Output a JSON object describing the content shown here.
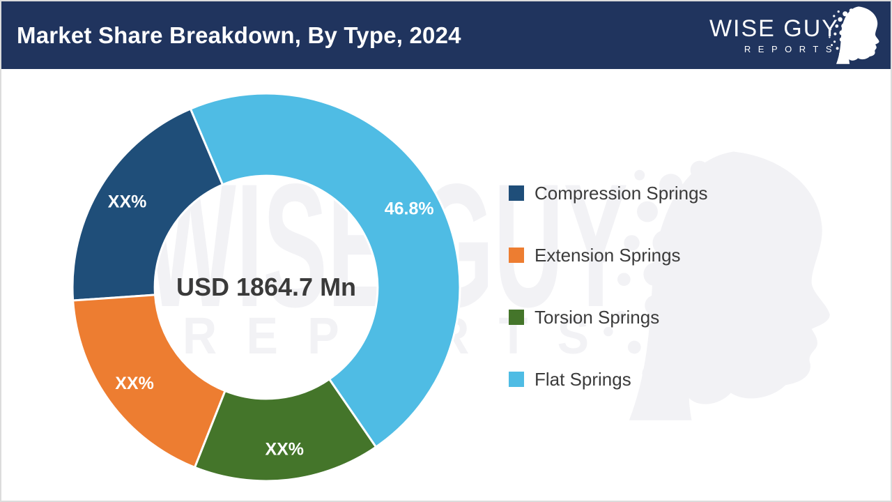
{
  "header": {
    "title": "Market Share Breakdown, By Type, 2024",
    "logo": {
      "line1": "WISE GUY",
      "line2": "REPORTS"
    }
  },
  "watermark": {
    "line1": "WISE GUY",
    "line2": "REPORTS"
  },
  "chart_data": {
    "type": "pie",
    "subtype": "donut",
    "title": "Market Share Breakdown, By Type, 2024",
    "center_label": "USD 1864.7 Mn",
    "donut_hole_ratio": 0.575,
    "start_angle_deg": 113,
    "direction": "counterclockwise",
    "legend_position": "right",
    "slices": [
      {
        "name": "Compression Springs",
        "color": "#1F4E79",
        "value_pct": 19.7,
        "data_label": "XX%"
      },
      {
        "name": "Extension Springs",
        "color": "#ED7D31",
        "value_pct": 17.9,
        "data_label": "XX%"
      },
      {
        "name": "Torsion Springs",
        "color": "#44752A",
        "value_pct": 15.6,
        "data_label": "XX%"
      },
      {
        "name": "Flat Springs",
        "color": "#4FBCE4",
        "value_pct": 46.8,
        "data_label": "46.8%"
      }
    ]
  },
  "colors": {
    "header_bg": "#20345E",
    "center_text": "#3A3A3A",
    "watermark": "#F2F2F5",
    "slice_gap": "#FFFFFF"
  }
}
